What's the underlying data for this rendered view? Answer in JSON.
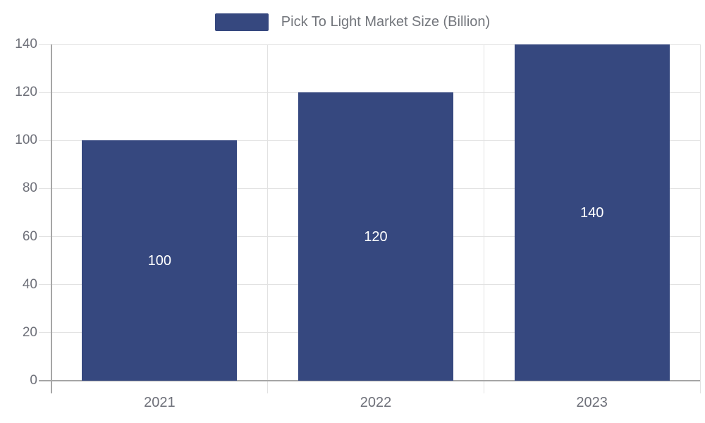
{
  "legend": {
    "label": "Pick To Light Market Size (Billion)"
  },
  "chart_data": {
    "type": "bar",
    "title": "Pick To Light Market Size (Billion)",
    "series_name": "Pick To Light Market Size (Billion)",
    "categories": [
      "2021",
      "2022",
      "2023"
    ],
    "values": [
      100,
      120,
      140
    ],
    "bar_labels": [
      "100",
      "120",
      "140"
    ],
    "xlabel": "",
    "ylabel": "",
    "yticks": [
      0,
      20,
      40,
      60,
      80,
      100,
      120,
      140
    ],
    "ylim": [
      0,
      140
    ],
    "grid": true,
    "legend_position": "top-center",
    "bar_label_position": "inside-center",
    "colors": {
      "bar": "#36487f",
      "bar_label": "#ffffff",
      "axis_label": "#6e7079",
      "legend_label": "#73767c",
      "grid_line": "#e2e2e2",
      "axis_line": "#a6a6a6",
      "background": "#ffffff"
    }
  }
}
